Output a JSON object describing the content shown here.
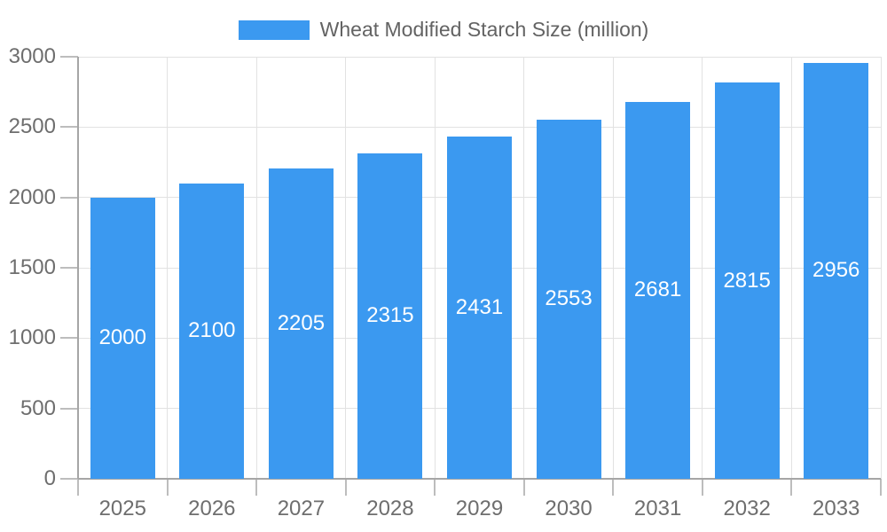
{
  "legend": {
    "label": "Wheat Modified Starch Size (million)"
  },
  "chart_data": {
    "type": "bar",
    "title": "",
    "xlabel": "",
    "ylabel": "",
    "categories": [
      "2025",
      "2026",
      "2027",
      "2028",
      "2029",
      "2030",
      "2031",
      "2032",
      "2033"
    ],
    "values": [
      2000,
      2100,
      2205,
      2315,
      2431,
      2553,
      2681,
      2815,
      2956
    ],
    "series_name": "Wheat Modified Starch Size (million)",
    "value_labels": [
      "2000",
      "2100",
      "2205",
      "2315",
      "2431",
      "2553",
      "2681",
      "2815",
      "2956"
    ],
    "ylim": [
      0,
      3000
    ],
    "yticks": [
      0,
      500,
      1000,
      1500,
      2000,
      2500,
      3000
    ],
    "grid": true,
    "legend_position": "top-center",
    "colors": {
      "bar": "#3B99F0",
      "value_label": "#ffffff",
      "axis_text": "#6e6e6e",
      "legend_text": "#636363",
      "gridline": "#e2e2e2",
      "axis_line": "#a6a6a6",
      "tick": "#bdbdbd",
      "background": "#ffffff"
    }
  }
}
